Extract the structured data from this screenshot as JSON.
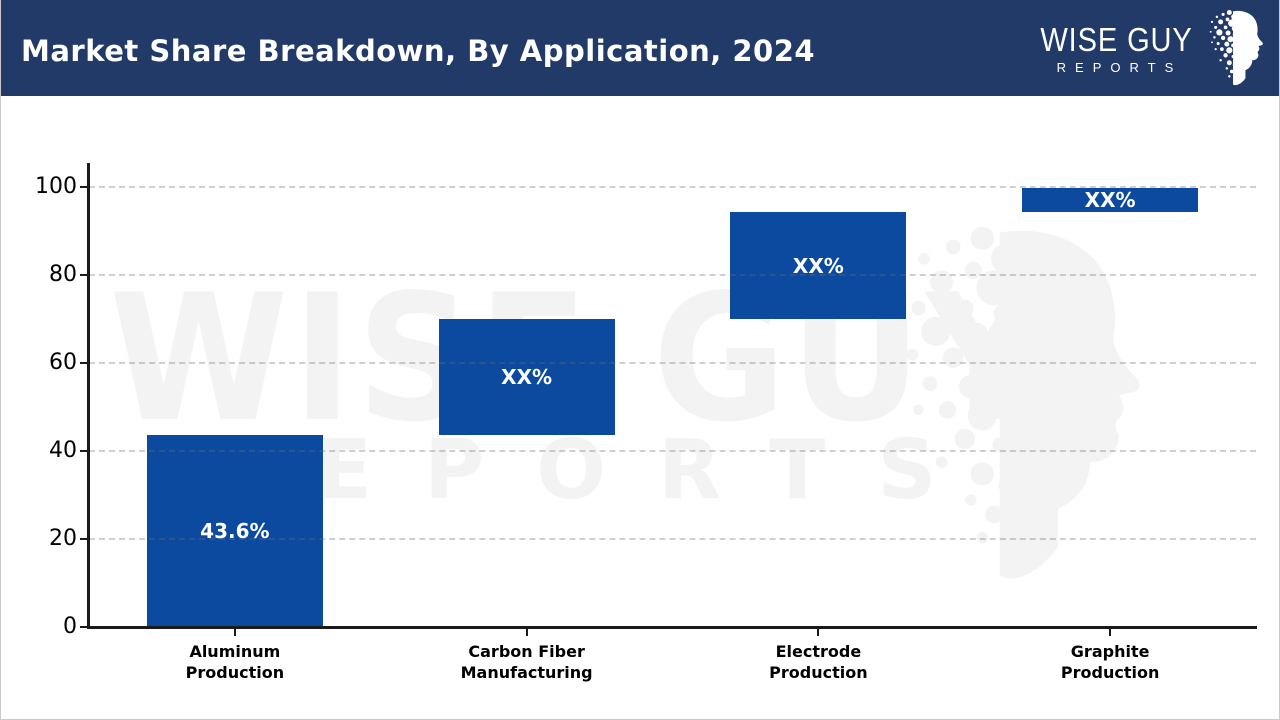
{
  "header": {
    "title": "Market Share Breakdown, By Application, 2024",
    "logo": {
      "line1": "WISE GUY",
      "line2": "REPORTS"
    }
  },
  "watermark": {
    "line1": "WISE GUY",
    "line2": "REPORTS"
  },
  "chart_data": {
    "type": "bar",
    "subtype": "waterfall",
    "title": "Market Share Breakdown, By Application, 2024",
    "xlabel": "",
    "ylabel": "",
    "grid": "dashed-horizontal",
    "legend": "none",
    "ylim": [
      0,
      105.5
    ],
    "y_ticks": [
      0,
      20,
      40,
      60,
      80,
      100
    ],
    "categories": [
      [
        "Aluminum",
        "Production"
      ],
      [
        "Carbon Fiber",
        "Manufacturing"
      ],
      [
        "Electrode",
        "Production"
      ],
      [
        "Graphite",
        "Production"
      ]
    ],
    "segments": [
      {
        "category": "Aluminum Production",
        "start": 0,
        "end": 43.6,
        "label": "43.6%"
      },
      {
        "category": "Carbon Fiber Manufacturing",
        "start": 43.6,
        "end": 69.9,
        "label": "XX%"
      },
      {
        "category": "Electrode Production",
        "start": 69.9,
        "end": 94.3,
        "label": "XX%"
      },
      {
        "category": "Graphite Production",
        "start": 94.3,
        "end": 99.8,
        "label": "XX%"
      }
    ],
    "bar_color": "#0b4a9f",
    "bar_label_color": "#ffffff",
    "axis_color": "#1a1a1a",
    "header_color": "#223A68",
    "watermark_color": "#f3f3f3"
  }
}
